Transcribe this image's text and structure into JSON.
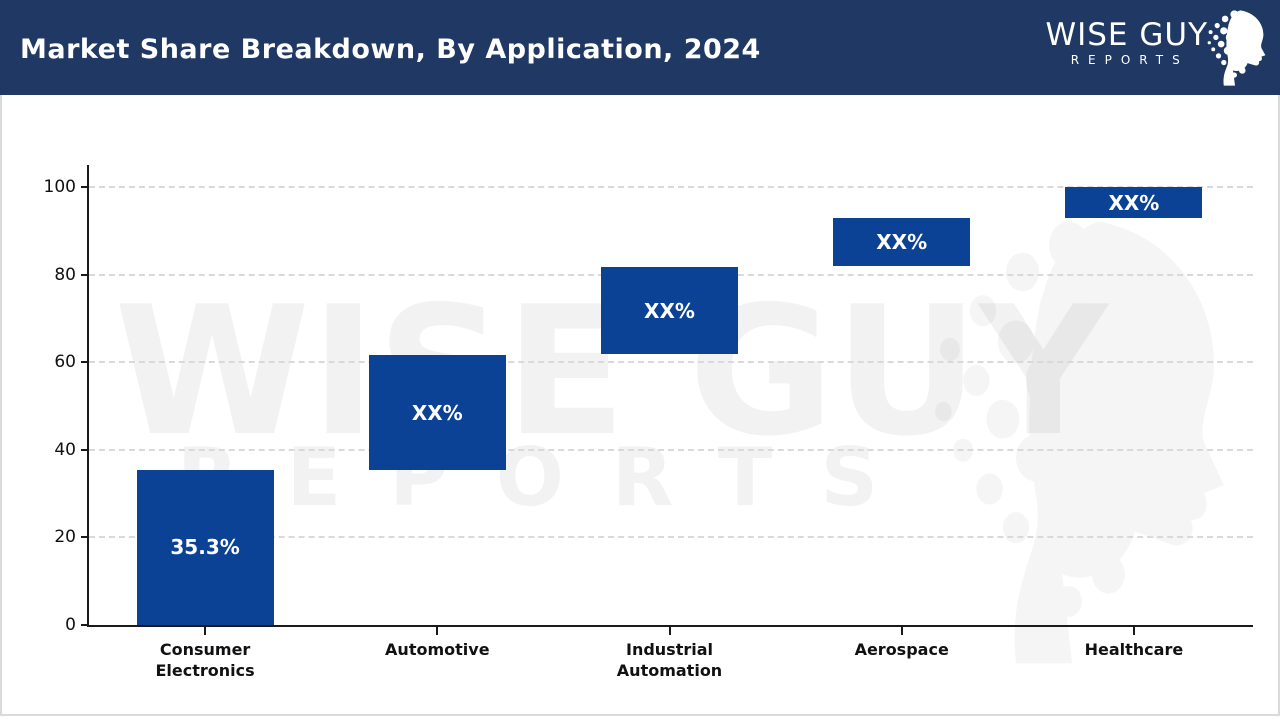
{
  "header": {
    "title": "Market Share Breakdown, By Application, 2024",
    "bg_color": "#1f3864",
    "logo": {
      "line1": "WISE GUY",
      "line2": "REPORTS"
    }
  },
  "watermark": {
    "line1": "WISE GUY",
    "line2": "REPORTS"
  },
  "chart_data": {
    "type": "bar",
    "variant": "waterfall",
    "title": "Market Share Breakdown, By Application, 2024",
    "categories": [
      [
        "Consumer",
        "Electronics"
      ],
      [
        "Automotive"
      ],
      [
        "Industrial",
        "Automation"
      ],
      [
        "Aerospace"
      ],
      [
        "Healthcare"
      ]
    ],
    "segments": [
      {
        "start": 0,
        "end": 35.3,
        "label": "35.3%"
      },
      {
        "start": 35.3,
        "end": 61.5,
        "label": "XX%"
      },
      {
        "start": 61.8,
        "end": 81.7,
        "label": "XX%"
      },
      {
        "start": 81.9,
        "end": 92.9,
        "label": "XX%"
      },
      {
        "start": 92.9,
        "end": 100,
        "label": "XX%"
      }
    ],
    "ylim": [
      0,
      100
    ],
    "yticks": [
      0,
      20,
      40,
      60,
      80,
      100
    ],
    "grid": "horizontal-dashed",
    "legend": "none",
    "bar_color": "#0b4296",
    "bar_label_color": "#ffffff",
    "gridline_color": "#d9d9d9",
    "axis_color": "#1a1a1a"
  }
}
